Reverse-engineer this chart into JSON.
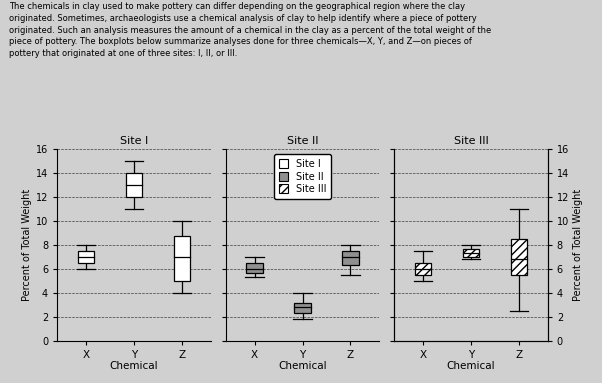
{
  "title_text": "The chemicals in clay used to make pottery can differ depending on the geographical region where the clay\noriginated. Sometimes, archaeologists use a chemical analysis of clay to help identify where a piece of pottery\noriginated. Such an analysis measures the amount of a chemical in the clay as a percent of the total weight of the\npiece of pottery. The boxplots below summarize analyses done for three chemicals—X, Y, and Z—on pieces of\npottery that originated at one of three sites: I, II, or III.",
  "site_labels": [
    "Site I",
    "Site II",
    "Site III"
  ],
  "chemical_labels": [
    "X",
    "Y",
    "Z"
  ],
  "ylabel": "Percent of Total Weight",
  "xlabel": "Chemical",
  "ylim": [
    0,
    16
  ],
  "yticks": [
    0,
    2,
    4,
    6,
    8,
    10,
    12,
    14,
    16
  ],
  "background_color": "#d0d0d0",
  "boxplot_data": {
    "Site I": {
      "X": {
        "whislo": 6.0,
        "q1": 6.5,
        "med": 7.0,
        "q3": 7.5,
        "whishi": 8.0
      },
      "Y": {
        "whislo": 11.0,
        "q1": 12.0,
        "med": 13.0,
        "q3": 14.0,
        "whishi": 15.0
      },
      "Z": {
        "whislo": 4.0,
        "q1": 5.0,
        "med": 7.0,
        "q3": 8.8,
        "whishi": 10.0
      }
    },
    "Site II": {
      "X": {
        "whislo": 5.3,
        "q1": 5.7,
        "med": 6.0,
        "q3": 6.5,
        "whishi": 7.0
      },
      "Y": {
        "whislo": 1.8,
        "q1": 2.3,
        "med": 2.8,
        "q3": 3.2,
        "whishi": 4.0
      },
      "Z": {
        "whislo": 5.5,
        "q1": 6.3,
        "med": 7.0,
        "q3": 7.5,
        "whishi": 8.0
      }
    },
    "Site III": {
      "X": {
        "whislo": 5.0,
        "q1": 5.5,
        "med": 6.0,
        "q3": 6.5,
        "whishi": 7.5
      },
      "Y": {
        "whislo": 6.8,
        "q1": 7.0,
        "med": 7.3,
        "q3": 7.7,
        "whishi": 8.0
      },
      "Z": {
        "whislo": 2.5,
        "q1": 5.5,
        "med": 6.8,
        "q3": 8.5,
        "whishi": 11.0
      }
    }
  },
  "site_styles": {
    "Site I": {
      "facecolor": "white",
      "hatch": null,
      "edgecolor": "black"
    },
    "Site II": {
      "facecolor": "#909090",
      "hatch": null,
      "edgecolor": "black"
    },
    "Site III": {
      "facecolor": "white",
      "hatch": "////",
      "edgecolor": "black"
    }
  },
  "legend_labels": [
    "Site I",
    "Site II",
    "Site III"
  ],
  "legend_styles": [
    {
      "facecolor": "white",
      "hatch": null,
      "edgecolor": "black"
    },
    {
      "facecolor": "#909090",
      "hatch": null,
      "edgecolor": "black"
    },
    {
      "facecolor": "white",
      "hatch": "////",
      "edgecolor": "black"
    }
  ]
}
